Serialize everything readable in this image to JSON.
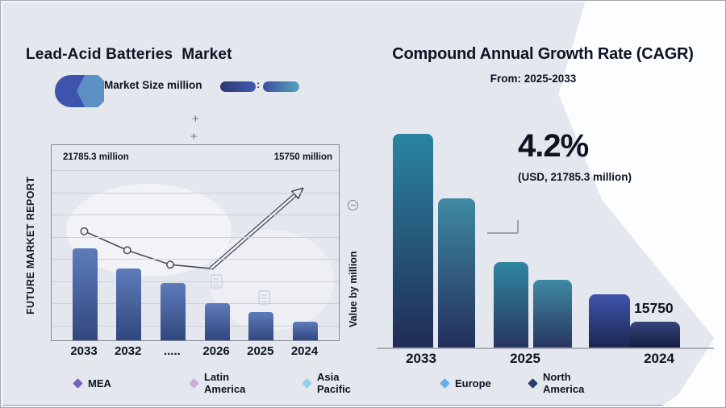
{
  "header": {
    "left_title": "Lead-Acid Batteries  Market",
    "market_size_label": "Market Size million",
    "scale_separator": ":",
    "plus_marks": [
      "+",
      "+"
    ]
  },
  "left_chart": {
    "side_caption": "FUTURE MARKET REPORT",
    "annotation_top_left": "21785.3 million",
    "annotation_top_right": "15750 million"
  },
  "right_panel": {
    "title": "Compound Annual Growth Rate (CAGR)",
    "subtitle": "From: 2025-2033",
    "cagr_value": "4.2%",
    "cagr_detail": "(USD, 21785.3 million)",
    "value_axis_caption": "Value by million",
    "bar_value_label": "15750"
  },
  "legend": {
    "items": [
      {
        "label": "MEA",
        "color": "#7b61b8"
      },
      {
        "label": "Latin America",
        "color": "#d2a8da"
      },
      {
        "label": "Asia Pacific",
        "color": "#8ed2ea"
      },
      {
        "label": "Europe",
        "color": "#5fb0ec"
      },
      {
        "label": "North America",
        "color": "#2c3c6e"
      }
    ]
  },
  "colors": {
    "background": "#e4e7ee",
    "text": "#0d1422",
    "left_bar_gradient": [
      "#5e7cba",
      "#31477f"
    ],
    "teal_bar_gradient": [
      "#2e7e9c",
      "#222c56"
    ],
    "blue_bar_gradient": [
      "#3f55aa",
      "#1b2550"
    ]
  },
  "chart_data": [
    {
      "type": "bar",
      "name": "market-size-by-year",
      "title": "Market Size million",
      "categories": [
        "2033",
        "2032",
        ".....",
        "2026",
        "2025",
        "2024"
      ],
      "values_relative": [
        1.0,
        0.78,
        0.623,
        0.403,
        0.307,
        0.202
      ],
      "labeled_values": {
        "2033": 21785.3,
        "2024": 15750
      },
      "unit": "million",
      "ylabel": "FUTURE MARKET REPORT",
      "grid": true,
      "bar_colors": [
        "#5e7cba",
        "#31477f"
      ],
      "trend_line": {
        "comment": "declining line with 3 circle markers over 2033-2026, then outlined arrow rising to the 15750 million annotation",
        "points_frac": [
          [
            0.114,
            0.443
          ],
          [
            0.264,
            0.541
          ],
          [
            0.414,
            0.615
          ],
          [
            0.556,
            0.635
          ]
        ],
        "arrow_end_frac": [
          0.878,
          0.221
        ],
        "marker_points": 3,
        "color": "#474c58"
      }
    },
    {
      "type": "bar",
      "name": "cagr-projection",
      "categories": [
        "2033",
        "2025",
        "2024"
      ],
      "series": [
        {
          "name": "series-a",
          "values_relative": [
            1.0,
            0.402,
            0.252
          ]
        },
        {
          "name": "series-b",
          "values_relative": [
            0.699,
            0.32,
            0.124
          ]
        }
      ],
      "labeled_values": {
        "2024": 15750
      },
      "ylabel": "Value by million",
      "bar_colors": [
        [
          "#2a85a0",
          "#222c56"
        ],
        [
          "#3f8aa4",
          "#232e5a"
        ],
        [
          "#2f86a0",
          "#27345f"
        ],
        [
          "#3f8aa4",
          "#28355f"
        ],
        [
          "#3f55aa",
          "#1b2550"
        ],
        [
          "#35447f",
          "#131c3e"
        ]
      ]
    }
  ]
}
